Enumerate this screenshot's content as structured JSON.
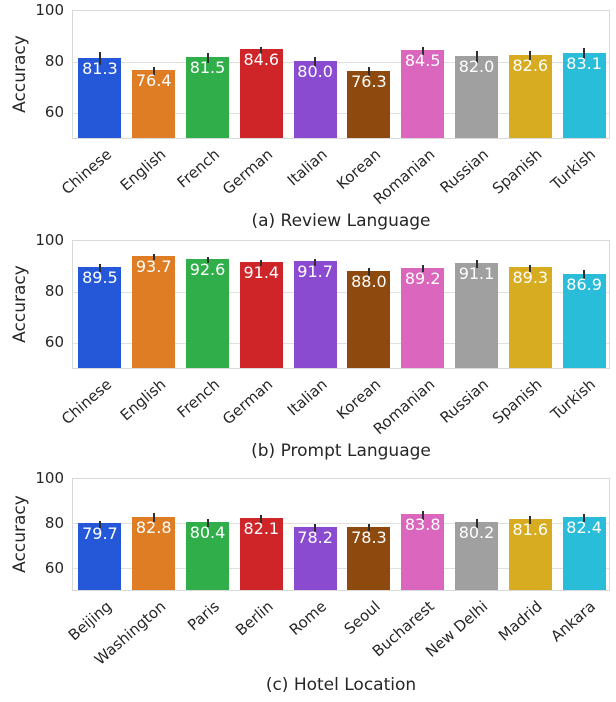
{
  "figure": {
    "background": "#ffffff",
    "text_color": "#262626",
    "grid_color": "#e0e0e0",
    "spine_color": "#d9d9d9",
    "errorbar_color": "#2e2e2e",
    "bar_label_color": "#ffffff",
    "palette": [
      "#2557d9",
      "#df7d24",
      "#30ae4a",
      "#cf2428",
      "#8a4bd0",
      "#8e490f",
      "#db66bd",
      "#a0a0a0",
      "#d8ac20",
      "#29bdd9"
    ]
  },
  "chart_data": [
    {
      "type": "bar",
      "title": "(a) Review Language",
      "ylabel": "Accuracy",
      "categories": [
        "Chinese",
        "English",
        "French",
        "German",
        "Italian",
        "Korean",
        "Romanian",
        "Russian",
        "Spanish",
        "Turkish"
      ],
      "values": [
        81.3,
        76.4,
        81.5,
        84.6,
        80.0,
        76.3,
        84.5,
        82.0,
        82.6,
        83.1
      ],
      "bar_labels": [
        "81.3",
        "76.4",
        "81.5",
        "84.6",
        "80.0",
        "76.3",
        "84.5",
        "82.0",
        "82.6",
        "83.1"
      ],
      "errors": [
        2.5,
        1.6,
        2.0,
        1.5,
        2.2,
        1.7,
        1.5,
        2.3,
        1.9,
        2.4
      ],
      "yticks": [
        60,
        80,
        100
      ],
      "ylim": [
        50,
        100
      ],
      "grid": true,
      "legend": "none"
    },
    {
      "type": "bar",
      "title": "(b) Prompt Language",
      "ylabel": "Accuracy",
      "categories": [
        "Chinese",
        "English",
        "French",
        "German",
        "Italian",
        "Korean",
        "Romanian",
        "Russian",
        "Spanish",
        "Turkish"
      ],
      "values": [
        89.5,
        93.7,
        92.6,
        91.4,
        91.7,
        88.0,
        89.2,
        91.1,
        89.3,
        86.9
      ],
      "bar_labels": [
        "89.5",
        "93.7",
        "92.6",
        "91.4",
        "91.7",
        "88.0",
        "89.2",
        "91.1",
        "89.3",
        "86.9"
      ],
      "errors": [
        1.5,
        1.1,
        1.2,
        1.3,
        1.4,
        1.5,
        1.4,
        1.5,
        1.4,
        1.7
      ],
      "yticks": [
        60,
        80,
        100
      ],
      "ylim": [
        50,
        100
      ],
      "grid": true,
      "legend": "none"
    },
    {
      "type": "bar",
      "title": "(c) Hotel Location",
      "ylabel": "Accuracy",
      "categories": [
        "Beijing",
        "Washington",
        "Paris",
        "Berlin",
        "Rome",
        "Seoul",
        "Bucharest",
        "New Delhi",
        "Madrid",
        "Ankara"
      ],
      "values": [
        79.7,
        82.8,
        80.4,
        82.1,
        78.2,
        78.3,
        83.8,
        80.2,
        81.6,
        82.4
      ],
      "bar_labels": [
        "79.7",
        "82.8",
        "80.4",
        "82.1",
        "78.2",
        "78.3",
        "83.8",
        "80.2",
        "81.6",
        "82.4"
      ],
      "errors": [
        1.6,
        2.1,
        1.7,
        1.8,
        1.9,
        1.5,
        1.9,
        1.9,
        1.8,
        1.8
      ],
      "yticks": [
        60,
        80,
        100
      ],
      "ylim": [
        50,
        100
      ],
      "grid": true,
      "legend": "none"
    }
  ]
}
